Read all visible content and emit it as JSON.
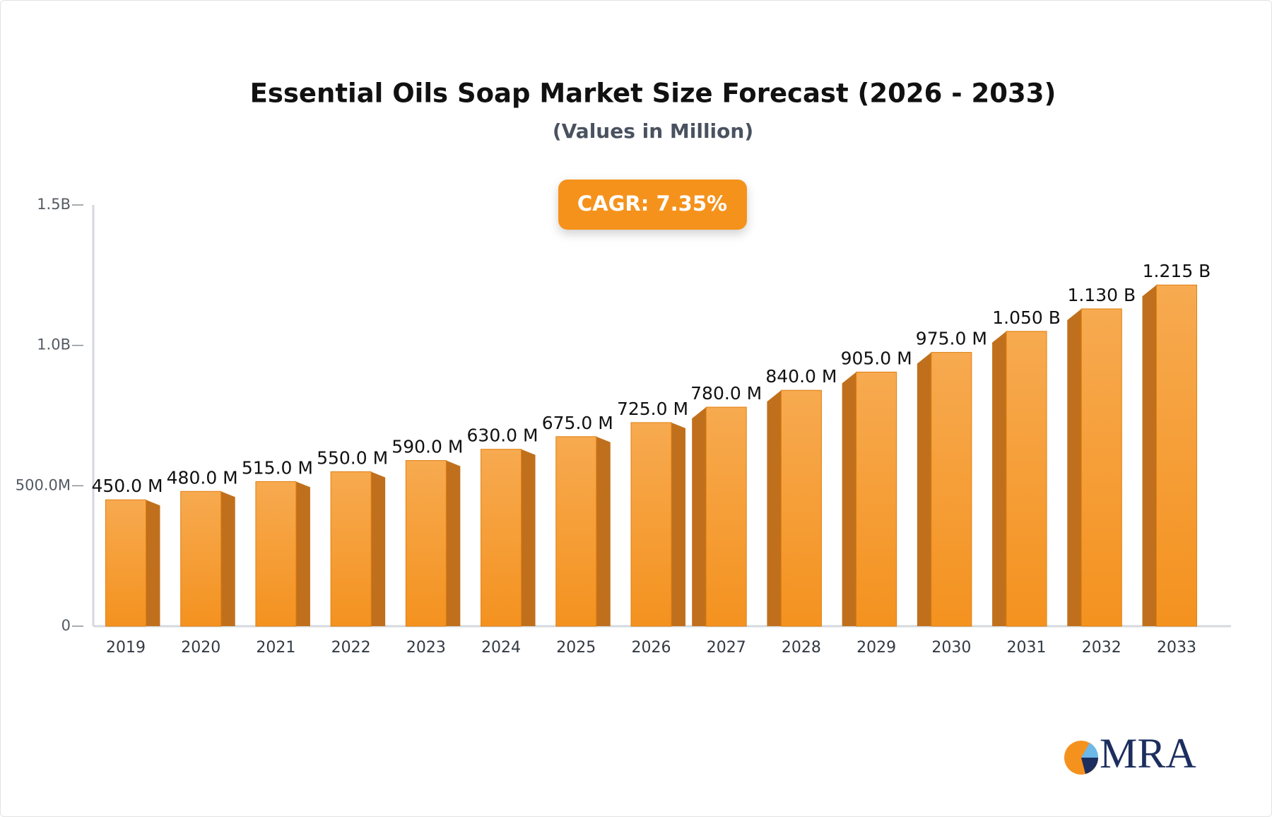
{
  "chart_data": {
    "type": "bar",
    "title": "Essential Oils Soap Market Size Forecast (2026 - 2033)",
    "subtitle": "(Values in Million)",
    "annotation": "CAGR: 7.35%",
    "logo": "MRA",
    "categories": [
      "2019",
      "2020",
      "2021",
      "2022",
      "2023",
      "2024",
      "2025",
      "2026",
      "2027",
      "2028",
      "2029",
      "2030",
      "2031",
      "2032",
      "2033"
    ],
    "values": [
      450,
      480,
      515,
      550,
      590,
      630,
      675,
      725,
      780,
      840,
      905,
      975,
      1050,
      1130,
      1215
    ],
    "value_labels": [
      "450.0 M",
      "480.0 M",
      "515.0 M",
      "550.0 M",
      "590.0 M",
      "630.0 M",
      "675.0 M",
      "725.0 M",
      "780.0 M",
      "840.0 M",
      "905.0 M",
      "975.0 M",
      "1.050 B",
      "1.130 B",
      "1.215 B"
    ],
    "color": "#f59a2e",
    "ylim": [
      0,
      1500
    ],
    "yticks": [
      {
        "value": 0,
        "label": "0"
      },
      {
        "value": 500,
        "label": "500.0M"
      },
      {
        "value": 1000,
        "label": "1.0B"
      },
      {
        "value": 1500,
        "label": "1.5B"
      }
    ],
    "grid": false
  }
}
